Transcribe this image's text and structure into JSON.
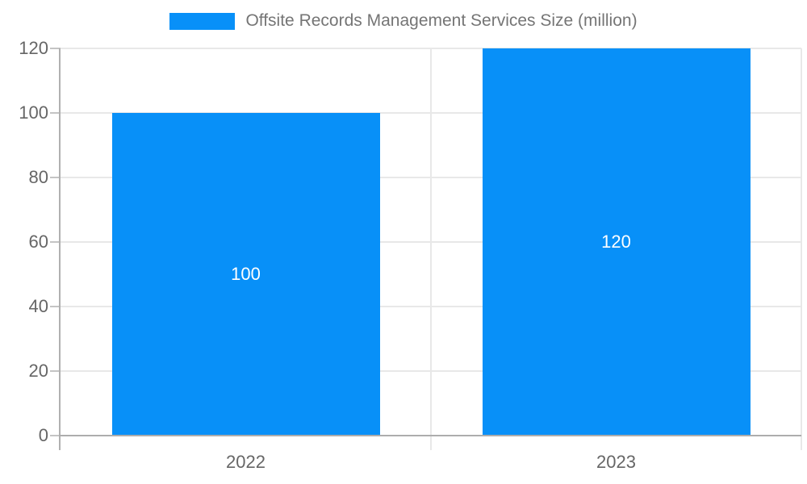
{
  "chart_data": {
    "type": "bar",
    "title": "",
    "xlabel": "",
    "ylabel": "",
    "categories": [
      "2022",
      "2023"
    ],
    "series": [
      {
        "name": "Offsite Records Management Services Size (million)",
        "values": [
          100,
          120
        ],
        "data_labels": [
          "100",
          "120"
        ],
        "color": "#0890f8"
      }
    ],
    "yticks": [
      0,
      20,
      40,
      60,
      80,
      100,
      120
    ],
    "ylim": [
      0,
      120
    ],
    "grid": true,
    "legend_position": "top"
  },
  "legend": {
    "label": "Offsite Records Management Services Size (million)",
    "swatch_color": "#0890f8"
  },
  "colors": {
    "bar": "#0890f8",
    "axis_line": "#b0b0b0",
    "gridline": "#e8e8e8",
    "tick": "#c4c4c4",
    "axis_text": "#666666",
    "legend_text": "#757575",
    "bar_label_text": "#ffffff",
    "background": "#ffffff"
  }
}
